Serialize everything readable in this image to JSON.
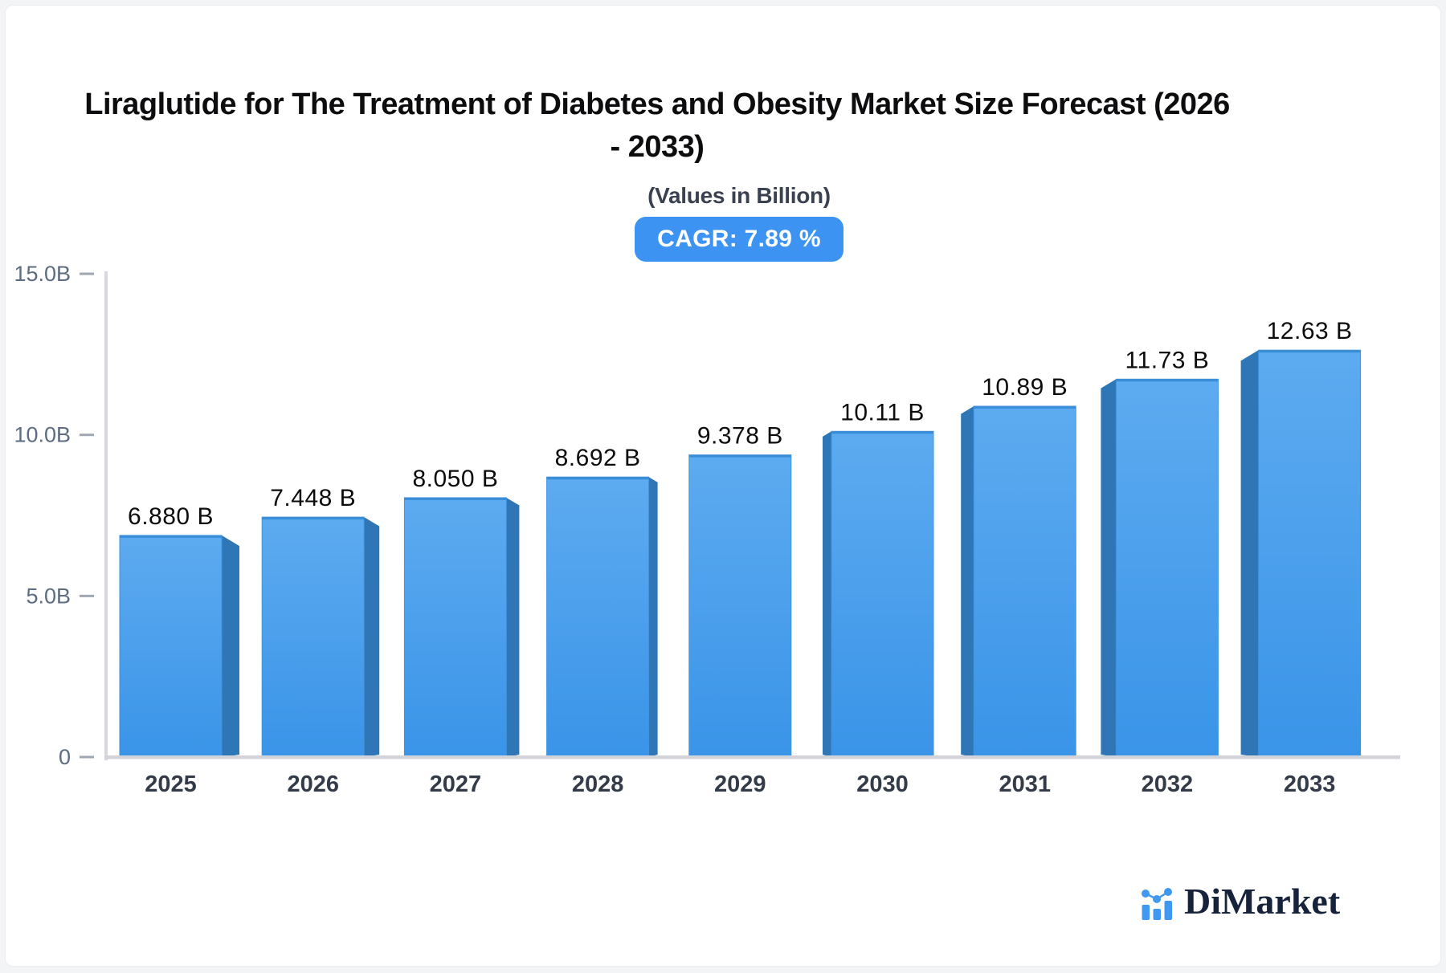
{
  "header": {
    "title_line1": "Liraglutide for The Treatment of Diabetes and Obesity Market Size Forecast (2026",
    "title_line2": "- 2033)",
    "subtitle": "(Values in Billion)",
    "cagr_badge": "CAGR: 7.89 %"
  },
  "chart_data": {
    "type": "bar",
    "title": "Liraglutide for The Treatment of Diabetes and Obesity Market Size Forecast (2026 - 2033)",
    "subtitle": "(Values in Billion)",
    "cagr_percent": 7.89,
    "categories": [
      "2025",
      "2026",
      "2027",
      "2028",
      "2029",
      "2030",
      "2031",
      "2032",
      "2033"
    ],
    "values": [
      6.88,
      7.448,
      8.05,
      8.692,
      9.378,
      10.11,
      10.89,
      11.73,
      12.63
    ],
    "value_labels": [
      "6.880 B",
      "7.448 B",
      "8.050 B",
      "8.692 B",
      "9.378 B",
      "10.11 B",
      "10.89 B",
      "11.73 B",
      "12.63 B"
    ],
    "xlabel": "",
    "ylabel": "",
    "ylim": [
      0,
      15
    ],
    "yticks": [
      {
        "value": 15,
        "label": "15.0B"
      },
      {
        "value": 10,
        "label": "10.0B"
      },
      {
        "value": 5,
        "label": "5.0B"
      },
      {
        "value": 0,
        "label": "0"
      }
    ],
    "grid": false,
    "legend": false,
    "style": "3d-columns-center-perspective",
    "colors": {
      "bar_face_top": "#5dabf0",
      "bar_face_bottom": "#3a94e8",
      "bar_face_stroke": "#3f93dd",
      "bar_top_edge": "#3a8ed8",
      "bar_side": "#2e76b6",
      "axis_line": "#d7d9de",
      "baseline": "#d2d4d9",
      "tick_dash": "#9fa7b3",
      "y_label": "#5d6c80",
      "x_label": "#333a48",
      "value_label": "#0c0c0c",
      "accent": "#3d93f2"
    }
  },
  "logo": {
    "text": "DiMarket",
    "text_color": "#16233b",
    "icon": "bar-line-chart-icon",
    "icon_color": "#4198ef"
  }
}
